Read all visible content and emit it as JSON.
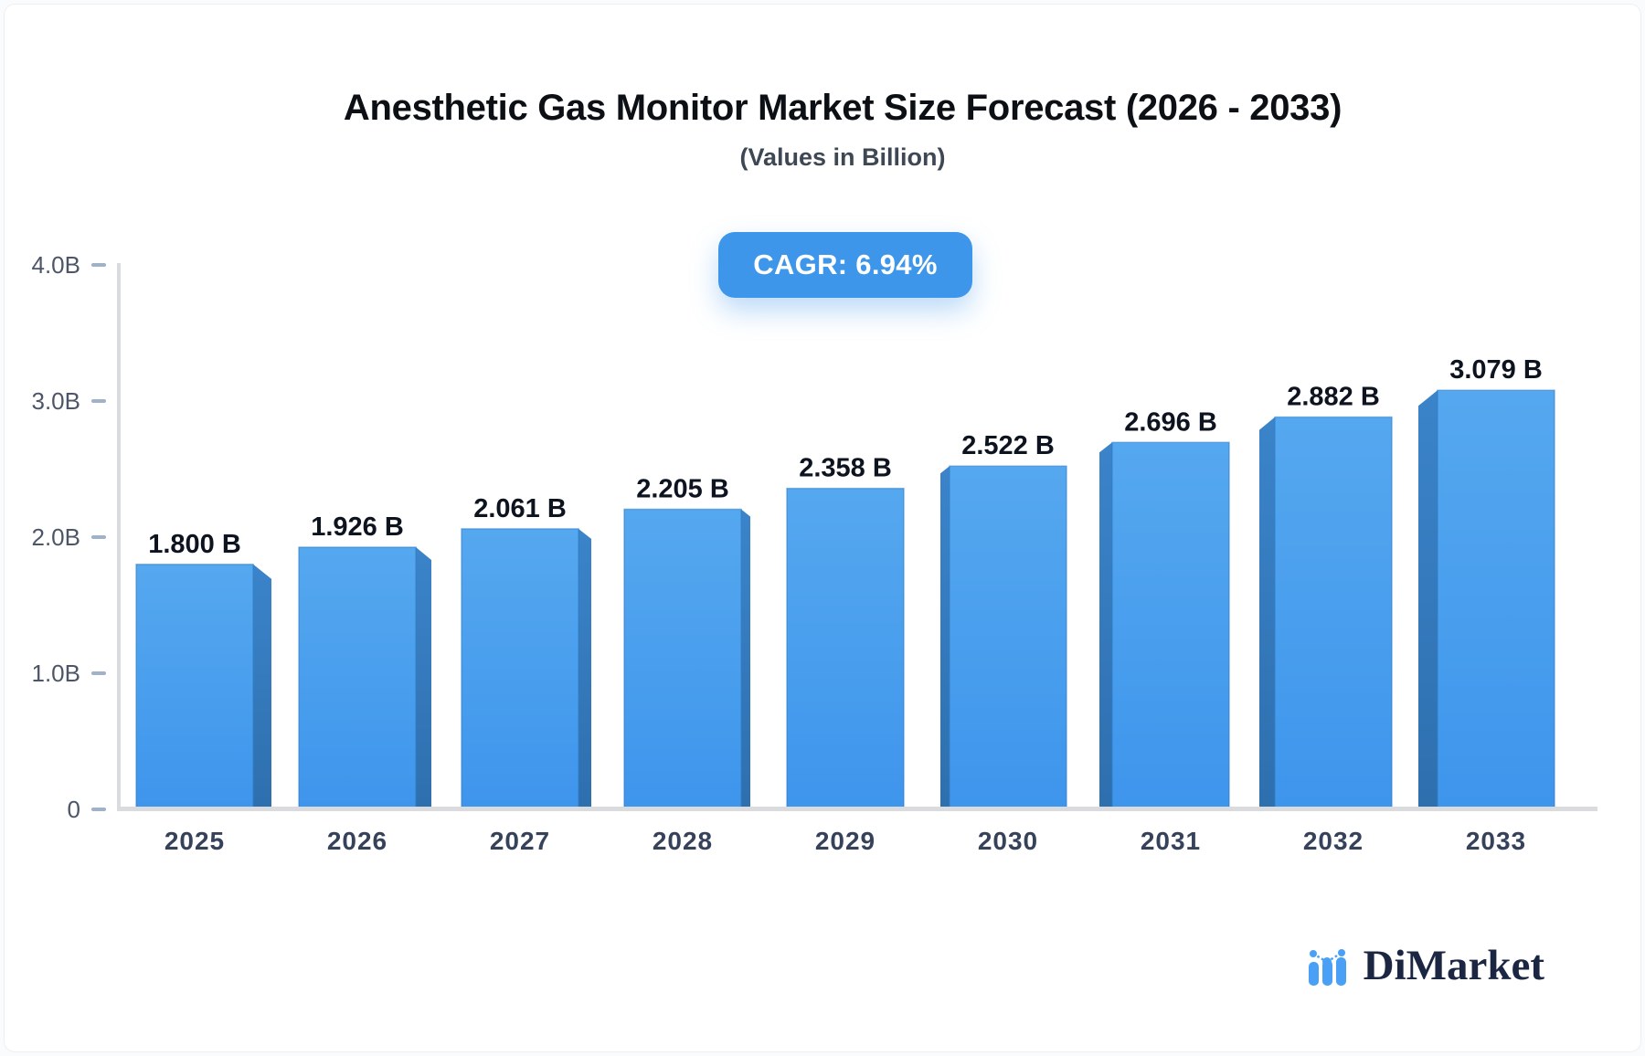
{
  "header": {
    "title": "Anesthetic Gas Monitor Market Size Forecast (2026 - 2033)",
    "subtitle": "(Values in Billion)"
  },
  "badge": {
    "label": "CAGR: 6.94%",
    "color": "#3e96ea"
  },
  "chart_data": {
    "type": "bar",
    "title": "Anesthetic Gas Monitor Market Size Forecast (2026 - 2033)",
    "subtitle": "(Values in Billion)",
    "categories": [
      "2025",
      "2026",
      "2027",
      "2028",
      "2029",
      "2030",
      "2031",
      "2032",
      "2033"
    ],
    "values": [
      1.8,
      1.926,
      2.061,
      2.205,
      2.358,
      2.522,
      2.696,
      2.882,
      3.079
    ],
    "bar_labels": [
      "1.800 B",
      "1.926 B",
      "2.061 B",
      "2.205 B",
      "2.358 B",
      "2.522 B",
      "2.696 B",
      "2.882 B",
      "3.079 B"
    ],
    "xlabel": "",
    "ylabel": "",
    "ylim": [
      0,
      4
    ],
    "y_axis": {
      "tick_labels": [
        "4.0B",
        "3.0B",
        "2.0B",
        "1.0B",
        "0"
      ],
      "tick_values": [
        4,
        3,
        2,
        1,
        0
      ]
    },
    "grid": false,
    "legend": null,
    "colors": {
      "bar_face_top": "#55a8ef",
      "bar_face_bottom": "#3e95ec",
      "bar_face_stroke": "#2f7dc6",
      "bar_side_top": "#3b84ca",
      "bar_side_bottom": "#2e6fae",
      "axis_line": "#d9dbde",
      "tick_dash": "#9fb2c8"
    }
  },
  "logo": {
    "name": "DiMarket",
    "icon": "bar-chart-trend-icon",
    "icon_color": "#4aa0f4",
    "text_color": "#1b2742"
  }
}
